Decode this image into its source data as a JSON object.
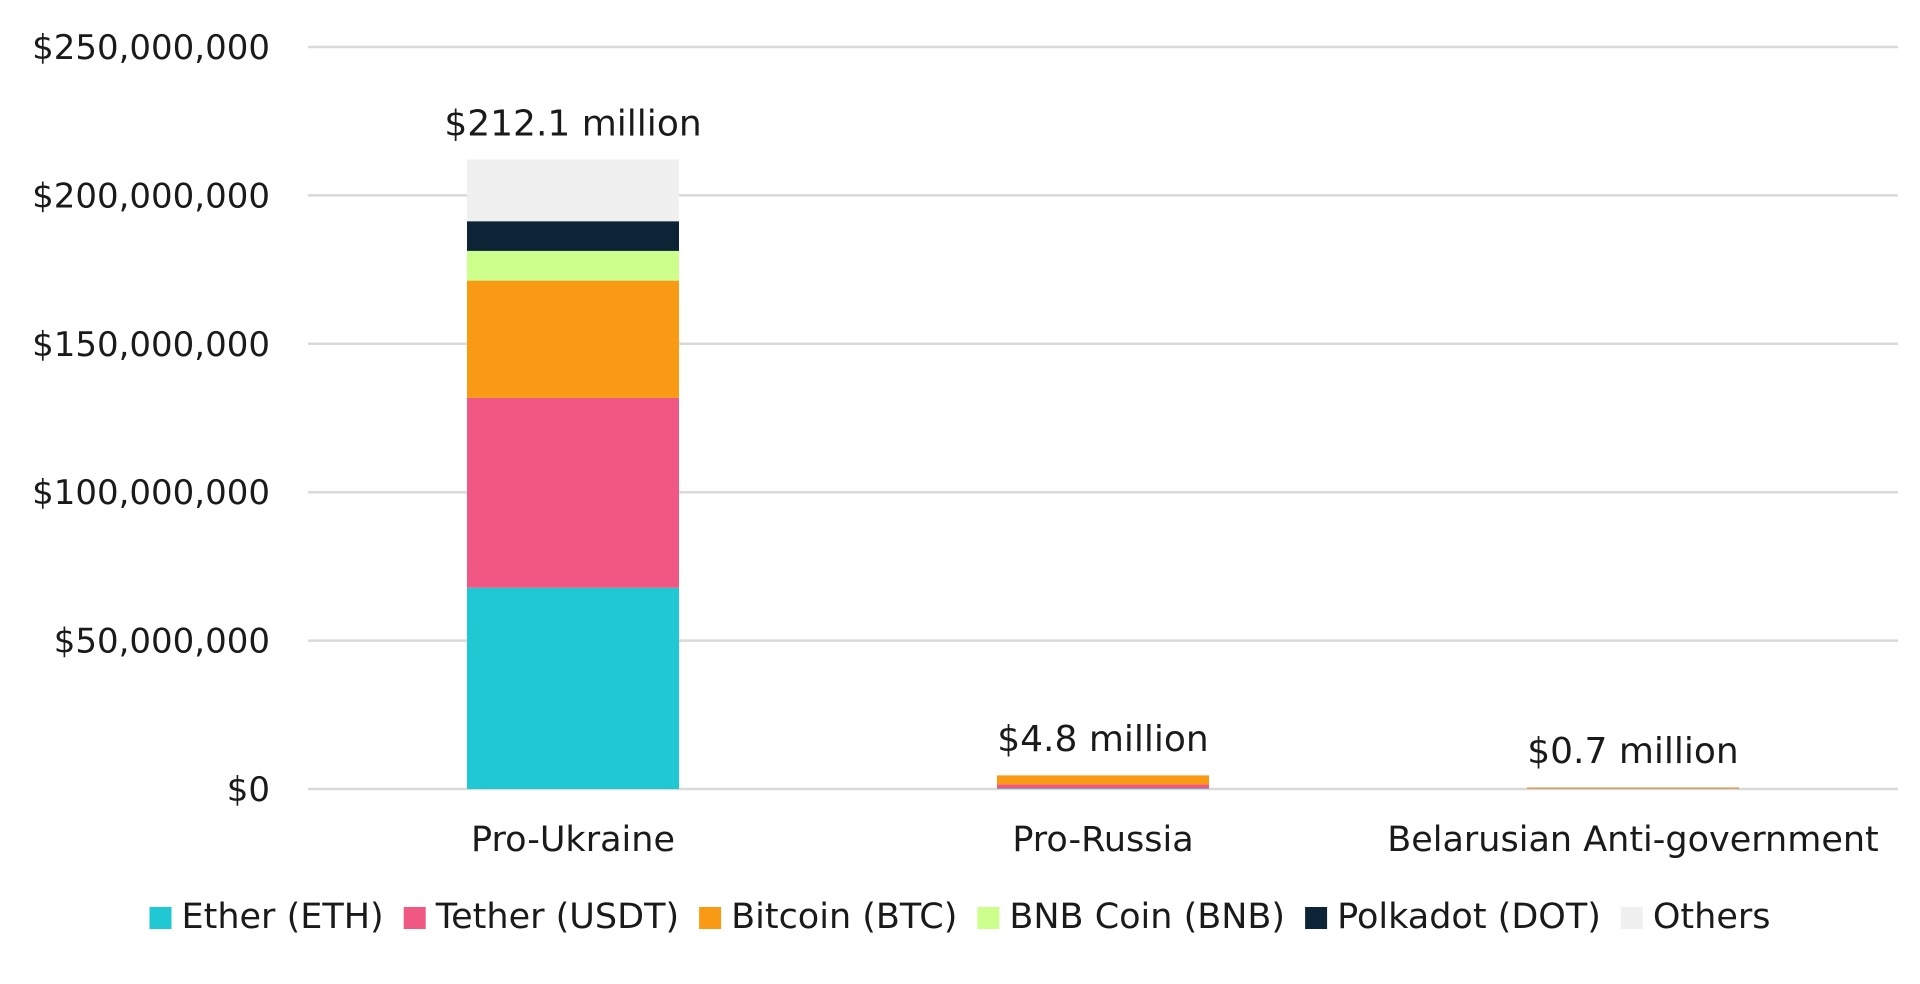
{
  "chart_data": {
    "type": "bar",
    "stacked": true,
    "title": "",
    "xlabel": "",
    "ylabel": "",
    "ylim": [
      0,
      250000000
    ],
    "y_ticks": [
      0,
      50000000,
      100000000,
      150000000,
      200000000,
      250000000
    ],
    "y_tick_labels": [
      "$0",
      "$50,000,000",
      "$100,000,000",
      "$150,000,000",
      "$200,000,000",
      "$250,000,000"
    ],
    "grid": true,
    "legend_position": "bottom",
    "categories": [
      "Pro-Ukraine",
      "Pro-Russia",
      "Belarusian Anti-government"
    ],
    "totals_labels": [
      "$212.1 million",
      "$4.8 million",
      "$0.7 million"
    ],
    "series": [
      {
        "name": "Ether (ETH)",
        "color": "#1fc8d2",
        "values": [
          67800000,
          200000,
          100000
        ]
      },
      {
        "name": "Tether (USDT)",
        "color": "#f05782",
        "values": [
          64000000,
          1300000,
          100000
        ]
      },
      {
        "name": "Bitcoin (BTC)",
        "color": "#f99a15",
        "values": [
          39500000,
          3100000,
          300000
        ]
      },
      {
        "name": "BNB Coin (BNB)",
        "color": "#ccff8c",
        "values": [
          10000000,
          0,
          0
        ]
      },
      {
        "name": "Polkadot (DOT)",
        "color": "#0c2436",
        "values": [
          10000000,
          0,
          0
        ]
      },
      {
        "name": "Others",
        "color": "#f0f0f0",
        "values": [
          20800000,
          200000,
          200000
        ]
      }
    ]
  }
}
